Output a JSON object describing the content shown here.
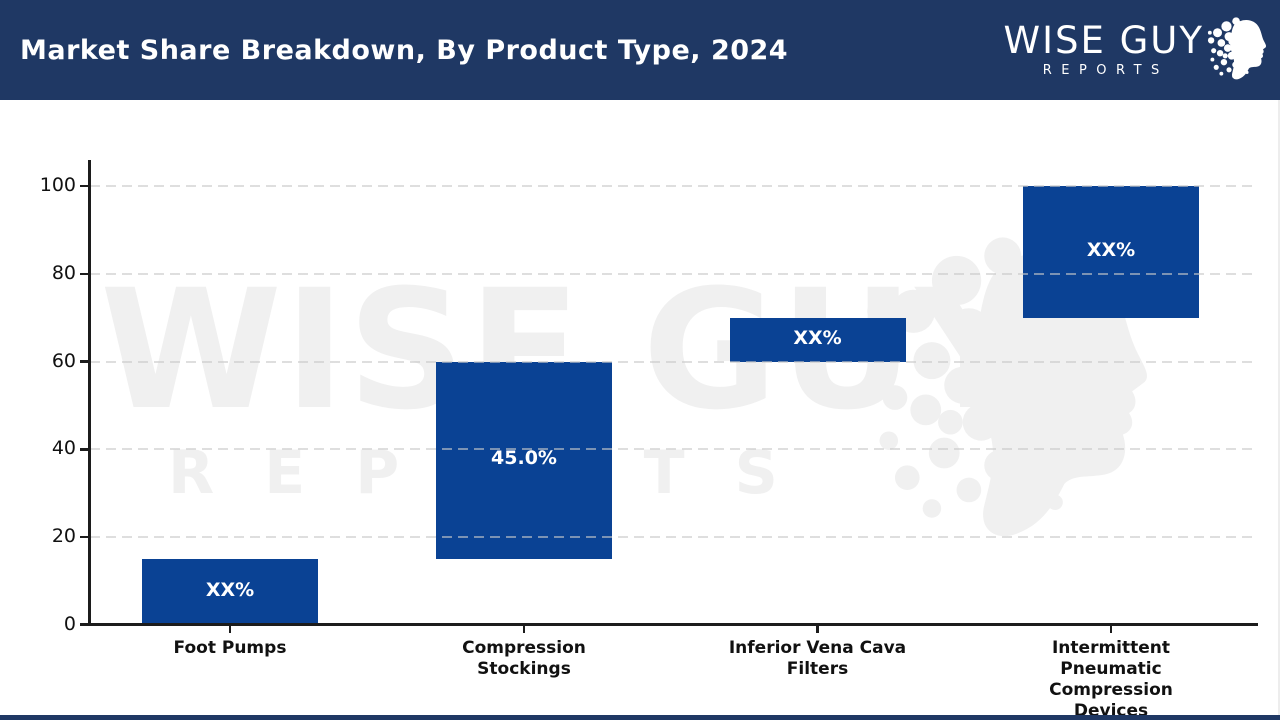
{
  "header": {
    "title": "Market Share Breakdown, By Product Type, 2024",
    "logo": {
      "brand": "WISE GUY",
      "sub": "REPORTS"
    }
  },
  "watermark": {
    "brand": "WISE GUY",
    "sub": "REPORTS"
  },
  "colors": {
    "header_bg": "#1f3864",
    "bar": "#0a4294",
    "grid": "#c9c9c9",
    "axis": "#1c1c1c",
    "watermark": "#f0f0f0",
    "title_text": "#ffffff",
    "bar_label_text": "#ffffff",
    "tick_text": "#111111"
  },
  "chart_data": {
    "type": "bar",
    "variant": "waterfall",
    "title": "Market Share Breakdown, By Product Type, 2024",
    "categories": [
      "Foot Pumps",
      "Compression Stockings",
      "Inferior Vena Cava Filters",
      "Intermittent Pneumatic Compression Devices"
    ],
    "category_display": [
      "Foot Pumps",
      "Compression\nStockings",
      "Inferior Vena Cava\nFilters",
      "Intermittent\nPneumatic\nCompression\nDevices"
    ],
    "bars": [
      {
        "category": "Foot Pumps",
        "start": 0,
        "end": 15,
        "value_label": "XX%"
      },
      {
        "category": "Compression Stockings",
        "start": 15,
        "end": 60,
        "value_label": "45.0%"
      },
      {
        "category": "Inferior Vena Cava Filters",
        "start": 60,
        "end": 70,
        "value_label": "XX%"
      },
      {
        "category": "Intermittent Pneumatic Compression Devices",
        "start": 70,
        "end": 100,
        "value_label": "XX%"
      }
    ],
    "y_ticks": [
      0,
      20,
      40,
      60,
      80,
      100
    ],
    "ylim": [
      0,
      100
    ],
    "xlabel": "",
    "ylabel": "",
    "grid": "horizontal-dashed",
    "legend": "none"
  }
}
